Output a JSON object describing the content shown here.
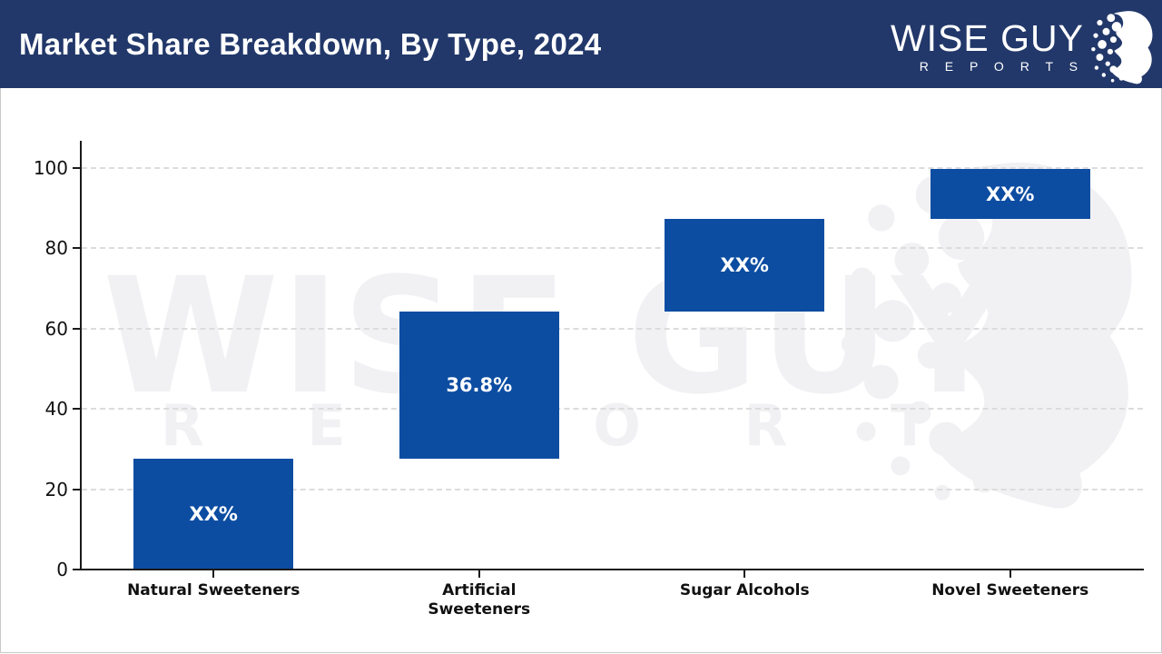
{
  "header": {
    "title": "Market Share Breakdown, By Type, 2024",
    "logo": {
      "line1": "WISE GUY",
      "line2": "R E P O R T S"
    }
  },
  "watermark": {
    "line1": "WISE GUY",
    "line2": "R E P O R T S"
  },
  "colors": {
    "header_bg": "#22386a",
    "bar": "#0c4da2",
    "bar_label": "#ffffff",
    "gridline": "#dcdcdc",
    "axis": "#1a1a1a",
    "watermark": "#f1f1f4"
  },
  "chart_data": {
    "type": "bar",
    "subtype": "waterfall",
    "title": "Market Share Breakdown, By Type, 2024",
    "xlabel": "",
    "ylabel": "",
    "categories": [
      "Natural Sweeteners",
      "Artificial Sweeteners",
      "Sugar Alcohols",
      "Novel Sweeteners"
    ],
    "segments": [
      {
        "category": "Natural Sweeteners",
        "start": 0,
        "end": 27.5,
        "label": "XX%"
      },
      {
        "category": "Artificial Sweeteners",
        "start": 27.5,
        "end": 64.3,
        "label": "36.8%"
      },
      {
        "category": "Sugar Alcohols",
        "start": 64.3,
        "end": 87.3,
        "label": "XX%"
      },
      {
        "category": "Novel Sweeteners",
        "start": 87.3,
        "end": 99.7,
        "label": "XX%"
      }
    ],
    "yticks": [
      0,
      20,
      40,
      60,
      80,
      100
    ],
    "ylim": [
      0,
      106
    ],
    "grid": "horizontal-dashed",
    "legend": "none"
  }
}
